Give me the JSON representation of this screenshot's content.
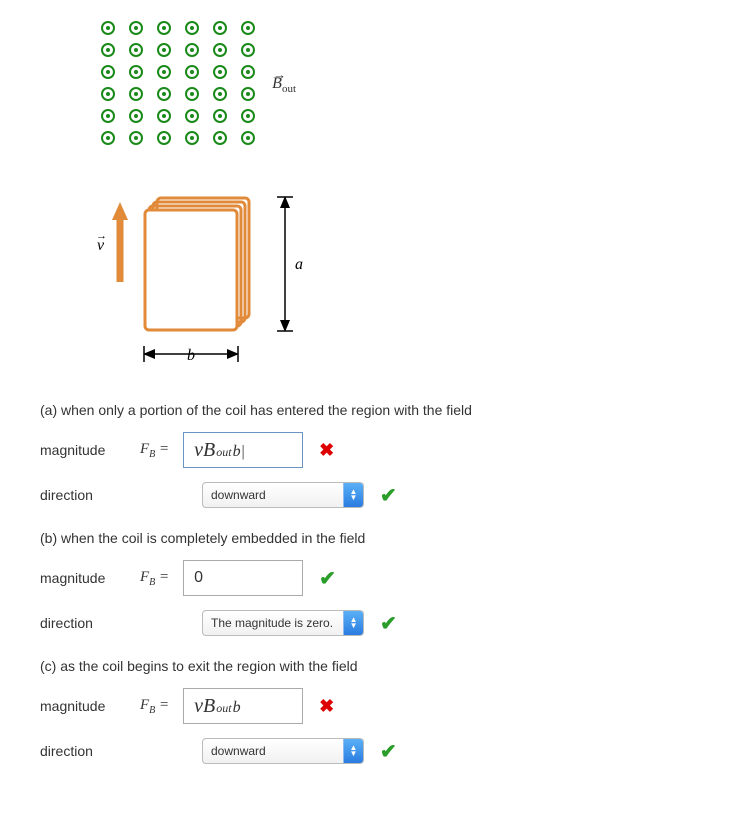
{
  "field": {
    "rows": 6,
    "cols": 6,
    "dot_stroke": "#1a8a1a",
    "dot_fill": "#1a8a1a",
    "label_html": "B",
    "label_sub": "out"
  },
  "coil": {
    "stroke": "#e08a3a",
    "fill": "#ffe8d0",
    "v_label": "v",
    "a_label": "a",
    "b_label": "b"
  },
  "parts": {
    "a": {
      "prompt": "(a) when only a portion of the coil has entered the region with the field",
      "magnitude_label": "magnitude",
      "direction_label": "direction",
      "fb_prefix": "F",
      "fb_sub": "B",
      "equals": " = ",
      "answer": "vB",
      "answer_sub": "out",
      "answer_tail": "b|",
      "mag_mark": "x",
      "direction_value": "downward",
      "dir_mark": "check"
    },
    "b": {
      "prompt": "(b) when the coil is completely embedded in the field",
      "magnitude_label": "magnitude",
      "direction_label": "direction",
      "fb_prefix": "F",
      "fb_sub": "B",
      "equals": " = ",
      "answer": "0",
      "mag_mark": "check",
      "direction_value": "The magnitude is zero.",
      "dir_mark": "check"
    },
    "c": {
      "prompt": "(c) as the coil begins to exit the region with the field",
      "magnitude_label": "magnitude",
      "direction_label": "direction",
      "fb_prefix": "F",
      "fb_sub": "B",
      "equals": " = ",
      "answer": "vB",
      "answer_sub": "out",
      "answer_tail": "b",
      "mag_mark": "x",
      "direction_value": "downward",
      "dir_mark": "check"
    }
  },
  "marks": {
    "x": "✖",
    "check": "✔"
  },
  "colors": {
    "field_green": "#1a8a1a",
    "coil_orange": "#e08a3a",
    "input_border_blue": "#6b94c4",
    "select_blue_top": "#5ab0f7",
    "select_blue_bottom": "#2a7de0",
    "wrong_red": "#d00",
    "correct_green": "#2a9d2a"
  }
}
